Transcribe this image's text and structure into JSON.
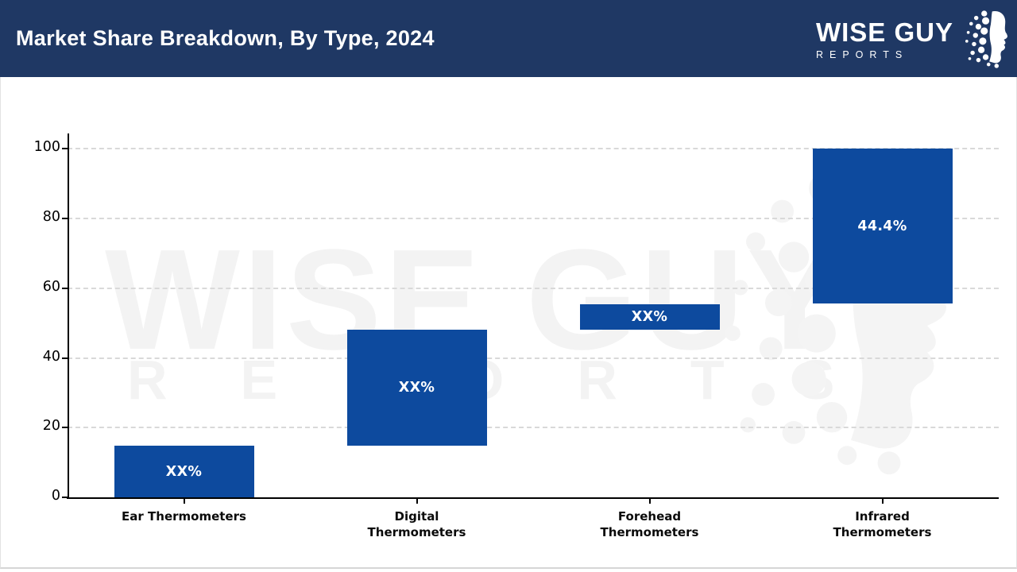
{
  "header": {
    "title": "Market Share Breakdown, By Type, 2024",
    "logo_line1": "WISE GUY",
    "logo_line2": "REPORTS",
    "bg_color": "#1f3864"
  },
  "watermark": {
    "line1": "WISE GUY",
    "line2": "REPORTS",
    "color": "#f3f3f3"
  },
  "chart_data": {
    "type": "bar",
    "subtype": "floating-waterfall",
    "title": "Market Share Breakdown, By Type, 2024",
    "categories": [
      [
        "Ear Thermometers"
      ],
      [
        "Digital",
        "Thermometers"
      ],
      [
        "Forehead",
        "Thermometers"
      ],
      [
        "Infrared",
        "Thermometers"
      ]
    ],
    "series": [
      {
        "name": "Market share (%)",
        "segments": [
          {
            "category": "Ear Thermometers",
            "start": 0,
            "end": 14.8,
            "value": 14.8,
            "label": "XX%"
          },
          {
            "category": "Digital Thermometers",
            "start": 14.8,
            "end": 48.1,
            "value": 33.3,
            "label": "XX%"
          },
          {
            "category": "Forehead Thermometers",
            "start": 48.2,
            "end": 55.5,
            "value": 7.3,
            "label": "XX%"
          },
          {
            "category": "Infrared Thermometers",
            "start": 55.6,
            "end": 100,
            "value": 44.4,
            "label": "44.4%"
          }
        ]
      }
    ],
    "xlabel": "",
    "ylabel": "",
    "yticks": [
      0,
      20,
      40,
      60,
      80,
      100
    ],
    "ylim": [
      0,
      104.4
    ],
    "grid": "horizontal-dashed",
    "legend": "none",
    "bar_color": "#0d4a9e",
    "bar_label_color": "#ffffff",
    "axis_color": "#000000",
    "gridline_color": "#d9d9d9"
  }
}
